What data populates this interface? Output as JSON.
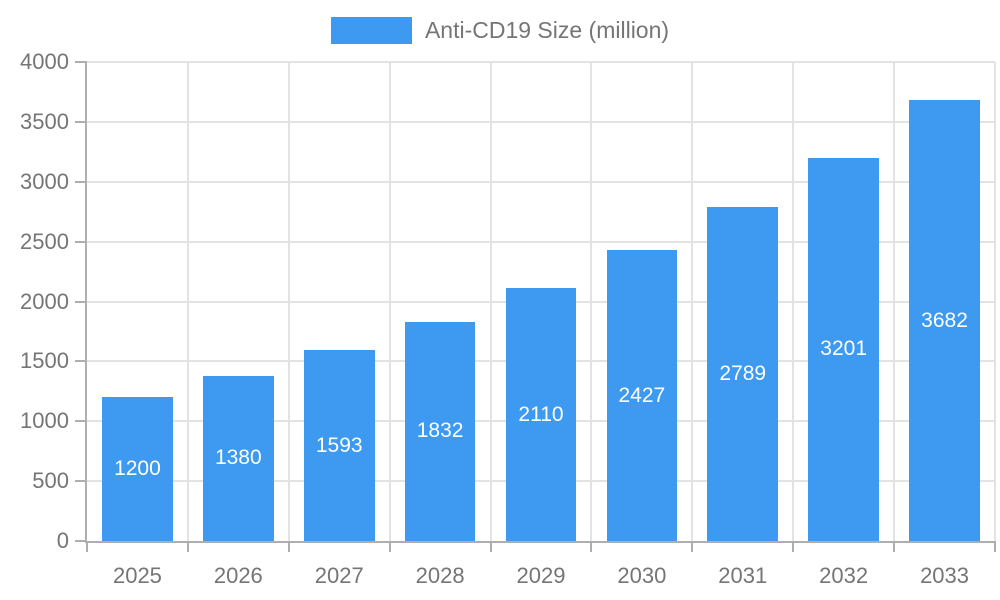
{
  "chart_data": {
    "type": "bar",
    "title": "",
    "series_name": "Anti-CD19 Size (million)",
    "legend": [
      "Anti-CD19 Size (million)"
    ],
    "categories": [
      "2025",
      "2026",
      "2027",
      "2028",
      "2029",
      "2030",
      "2031",
      "2032",
      "2033"
    ],
    "values": [
      1200,
      1380,
      1593,
      1832,
      2110,
      2427,
      2789,
      3201,
      3682
    ],
    "xlabel": "",
    "ylabel": "",
    "ylim": [
      0,
      4000
    ],
    "ytick_step": 500,
    "grid": true,
    "legend_position": "top-center",
    "value_label_position": "inside-center",
    "colors": {
      "bar": "#3d9af0",
      "axis": "#aeaeae",
      "grid": "#e3e3e3",
      "text": "#757575",
      "value_label": "#ffffff",
      "background": "#ffffff"
    }
  }
}
